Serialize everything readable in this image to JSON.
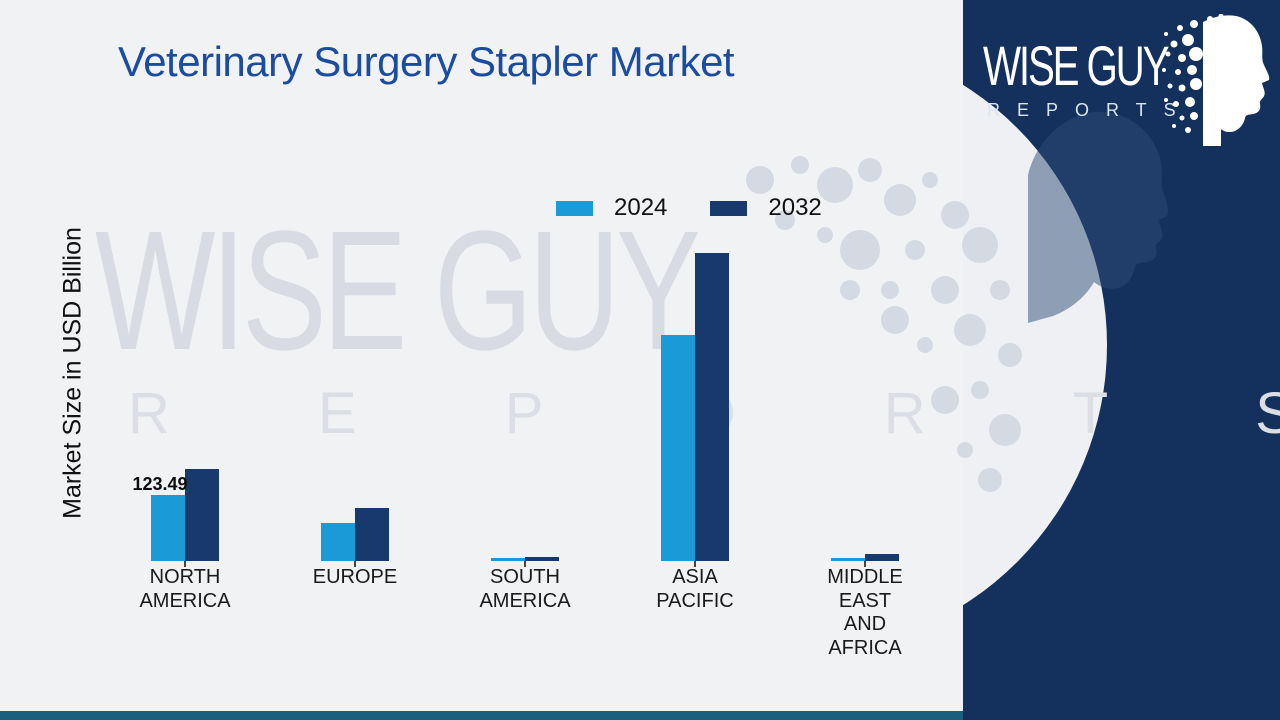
{
  "title": "Veterinary Surgery Stapler Market",
  "y_axis_label": "Market Size in USD Billion",
  "watermark": {
    "brand_top": "WISE GUY",
    "brand_bottom": "R E P O R T S"
  },
  "logo": {
    "brand_top": "WISE GUY",
    "brand_bottom": "REPORTS"
  },
  "legend": {
    "items": [
      {
        "label": "2024",
        "color": "#1a9bd7"
      },
      {
        "label": "2032",
        "color": "#17396b"
      }
    ]
  },
  "colors": {
    "background": "#f1f2f4",
    "panel_navy": "#14305c",
    "series_2024": "#1a9bd7",
    "series_2032": "#17396b",
    "bottom_strip_teal": "#1b5f7e",
    "title_blue": "#1b4ca0",
    "watermark_gray": "#d8dce2"
  },
  "chart_data": {
    "type": "bar",
    "title": "Veterinary Surgery Stapler Market",
    "ylabel": "Market Size in USD Billion",
    "xlabel": "",
    "categories": [
      "NORTH AMERICA",
      "EUROPE",
      "SOUTH AMERICA",
      "ASIA PACIFIC",
      "MIDDLE EAST AND AFRICA"
    ],
    "categories_lines": [
      [
        "NORTH",
        "AMERICA"
      ],
      [
        "EUROPE"
      ],
      [
        "SOUTH",
        "AMERICA"
      ],
      [
        "ASIA",
        "PACIFIC"
      ],
      [
        "MIDDLE",
        "EAST",
        "AND",
        "AFRICA"
      ]
    ],
    "series": [
      {
        "name": "2024",
        "color": "#1a9bd7",
        "values": [
          123.49,
          71,
          5,
          423,
          6
        ]
      },
      {
        "name": "2032",
        "color": "#17396b",
        "values": [
          172,
          99,
          8,
          576,
          13
        ]
      }
    ],
    "data_labels": [
      {
        "series": "2024",
        "category": "NORTH AMERICA",
        "text": "123.49"
      }
    ],
    "ylim": [
      0,
      600
    ],
    "grid": false,
    "y_ticks_shown": false,
    "legend_position": "top-right"
  }
}
